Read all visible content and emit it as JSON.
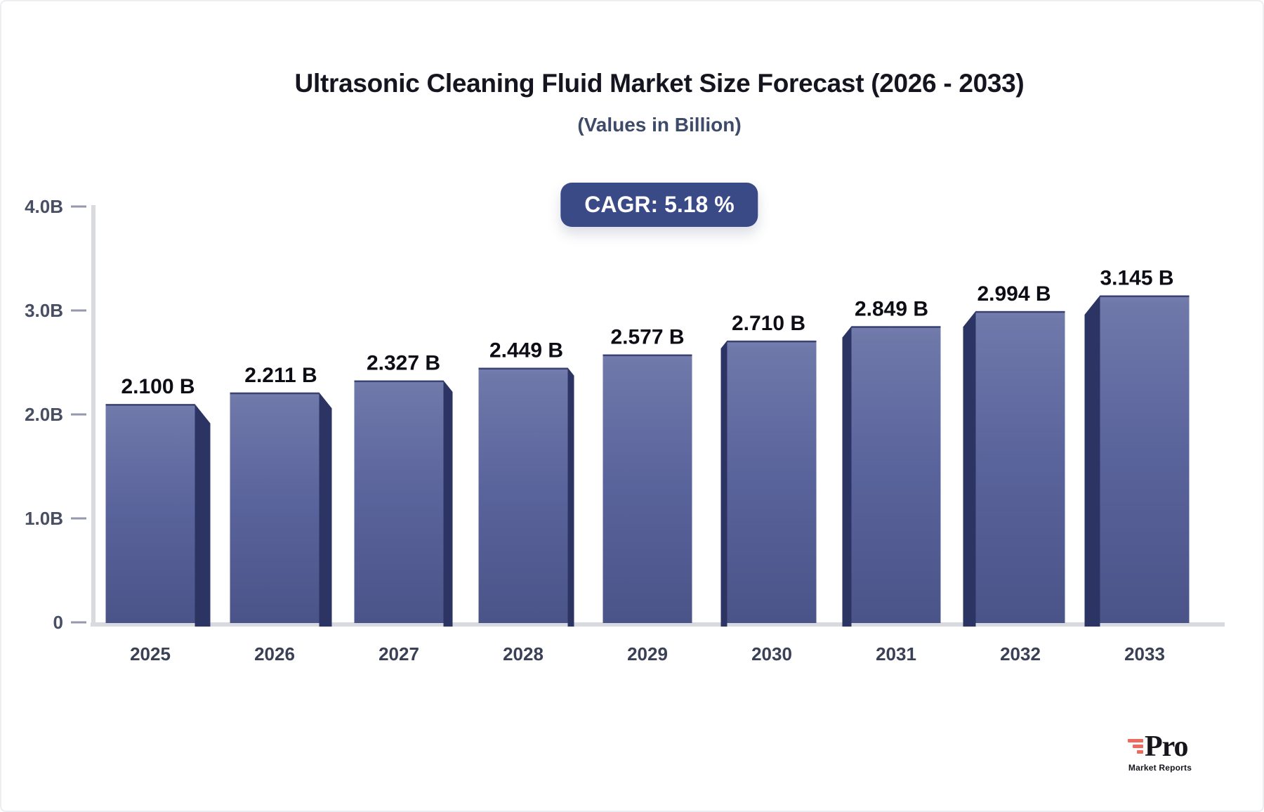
{
  "header": {
    "title": "Ultrasonic Cleaning Fluid Market Size Forecast (2026 - 2033)",
    "subtitle": "(Values in Billion)",
    "cagr_badge": "CAGR: 5.18 %"
  },
  "chart_data": {
    "type": "bar",
    "title": "Ultrasonic Cleaning Fluid Market Size Forecast (2026 - 2033)",
    "subtitle": "(Values in Billion)",
    "cagr_pct": 5.18,
    "categories": [
      "2025",
      "2026",
      "2027",
      "2028",
      "2029",
      "2030",
      "2031",
      "2032",
      "2033"
    ],
    "values": [
      2.1,
      2.211,
      2.327,
      2.449,
      2.577,
      2.71,
      2.849,
      2.994,
      3.145
    ],
    "value_labels": [
      "2.100 B",
      "2.211 B",
      "2.327 B",
      "2.449 B",
      "2.577 B",
      "2.710 B",
      "2.849 B",
      "2.994 B",
      "3.145 B"
    ],
    "ylim": [
      0,
      4
    ],
    "yticks": [
      {
        "value": 4,
        "label": "4.0B"
      },
      {
        "value": 3,
        "label": "3.0B"
      },
      {
        "value": 2,
        "label": "2.0B"
      },
      {
        "value": 1,
        "label": "1.0B"
      },
      {
        "value": 0,
        "label": "0"
      }
    ],
    "grid": false,
    "legend": false,
    "style": "3d-perspective-bars"
  },
  "colors": {
    "badge_bg": "#3a4a87",
    "bar_face_top": "#767fae",
    "bar_face_upper": "#6e78a9",
    "bar_face_mid": "#5a649c",
    "bar_face_bottom": "#4a5488",
    "bar_top_edge": "#3a4372",
    "bar_side": "#2c3463",
    "axis_line": "#d9dae0",
    "tick": "#949aab",
    "tick_label": "#484e63",
    "category_label": "#3a4157",
    "value_label": "#0d0d16",
    "title": "#15151f",
    "subtitle": "#3d4a68",
    "logo_accent": "#ee6a5c"
  },
  "logo": {
    "brand": "Pro",
    "tagline": "Market Reports"
  }
}
